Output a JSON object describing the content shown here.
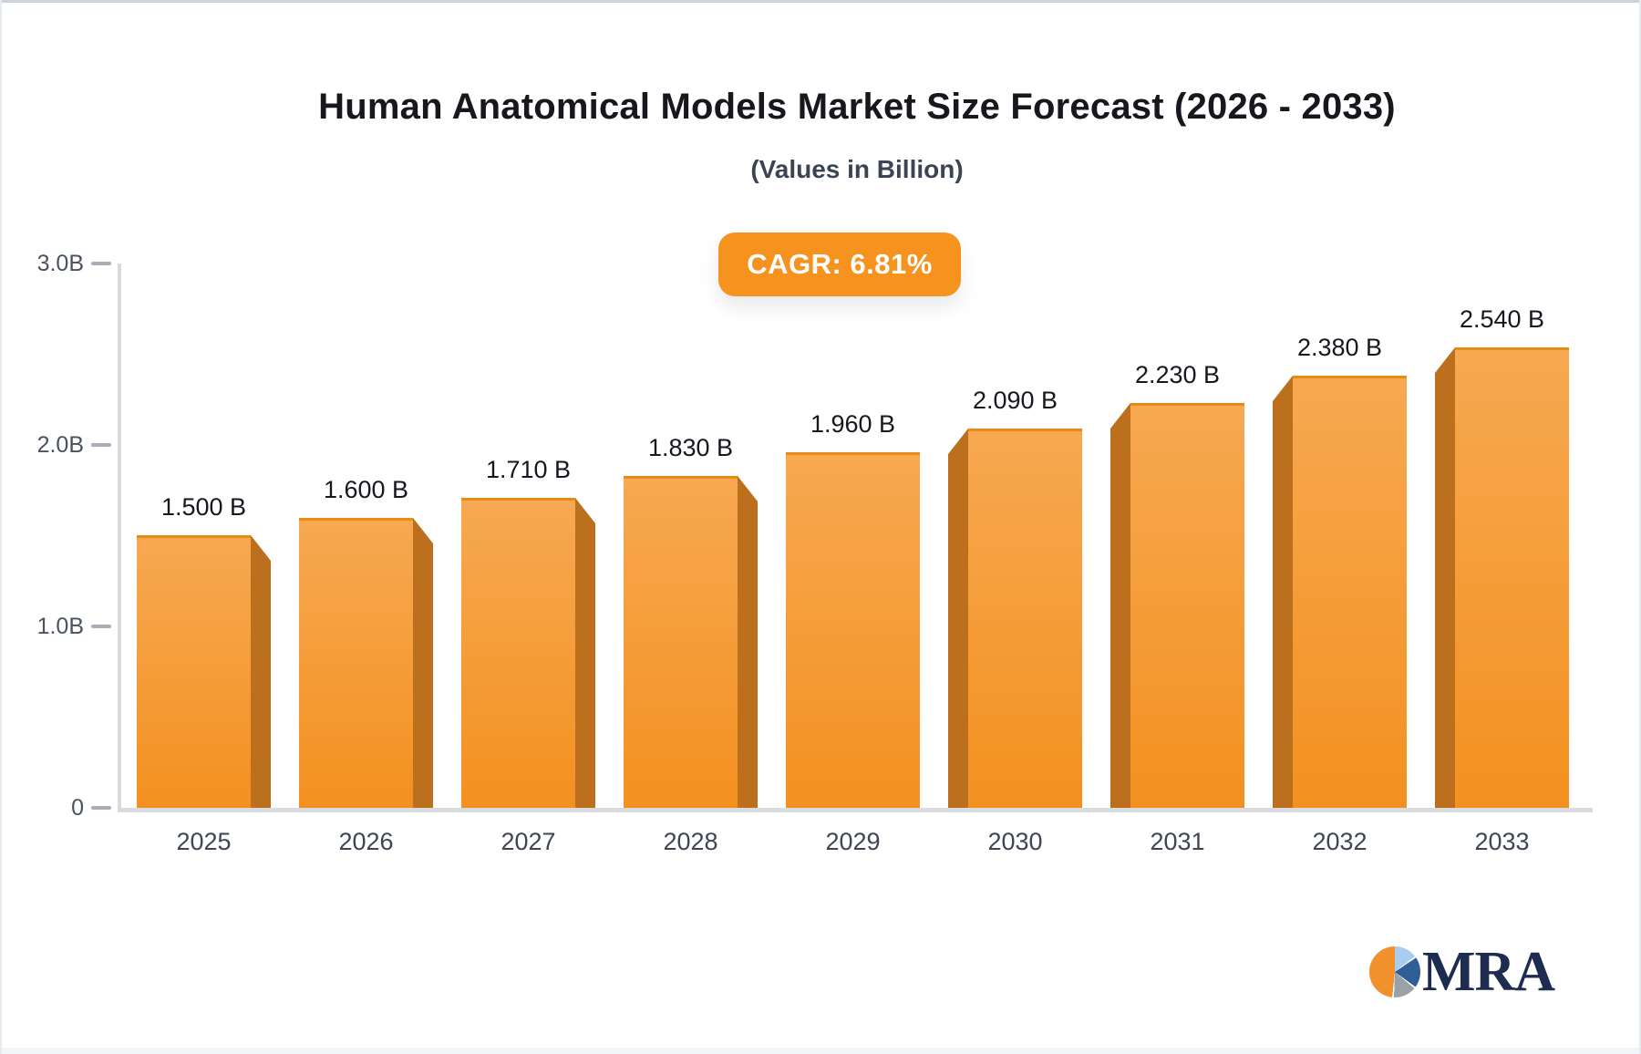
{
  "header": {
    "title": "Human Anatomical Models Market Size Forecast (2026 - 2033)",
    "subtitle": "(Values in Billion)",
    "cagr_label": "CAGR: 6.81%"
  },
  "branding": {
    "logo_text": "MRA"
  },
  "colors": {
    "accent_orange": "#f6921e",
    "bar_face_top": "#f7a851",
    "bar_face_bottom": "#f39120",
    "bar_side": "#bc6f1d",
    "axis_line": "#d9dade",
    "tick_dash": "#a8adb7",
    "value_label_text": "#15181e",
    "axis_text": "#4a5160",
    "logo_navy": "#1d2c50",
    "logo_orange": "#f0912b",
    "logo_lightblue": "#a9cdee",
    "logo_blue": "#2f5f96",
    "logo_gray": "#9ba1a9"
  },
  "chart_data": {
    "type": "bar",
    "title": "Human Anatomical Models Market Size Forecast (2026 - 2033)",
    "subtitle": "(Values in Billion)",
    "annotation": "CAGR: 6.81%",
    "xlabel": "",
    "ylabel": "",
    "categories": [
      "2025",
      "2026",
      "2027",
      "2028",
      "2029",
      "2030",
      "2031",
      "2032",
      "2033"
    ],
    "values": [
      1.5,
      1.6,
      1.71,
      1.83,
      1.96,
      2.09,
      2.23,
      2.38,
      2.54
    ],
    "value_labels": [
      "1.500 B",
      "1.600 B",
      "1.710 B",
      "1.830 B",
      "1.960 B",
      "2.090 B",
      "2.230 B",
      "2.380 B",
      "2.540 B"
    ],
    "ylim": [
      0,
      3.0
    ],
    "ytick_values": [
      3.0,
      2.0,
      1.0,
      0
    ],
    "ytick_labels": [
      "3.0B",
      "2.0B",
      "1.0B",
      "0"
    ],
    "grid": false,
    "legend": false
  }
}
